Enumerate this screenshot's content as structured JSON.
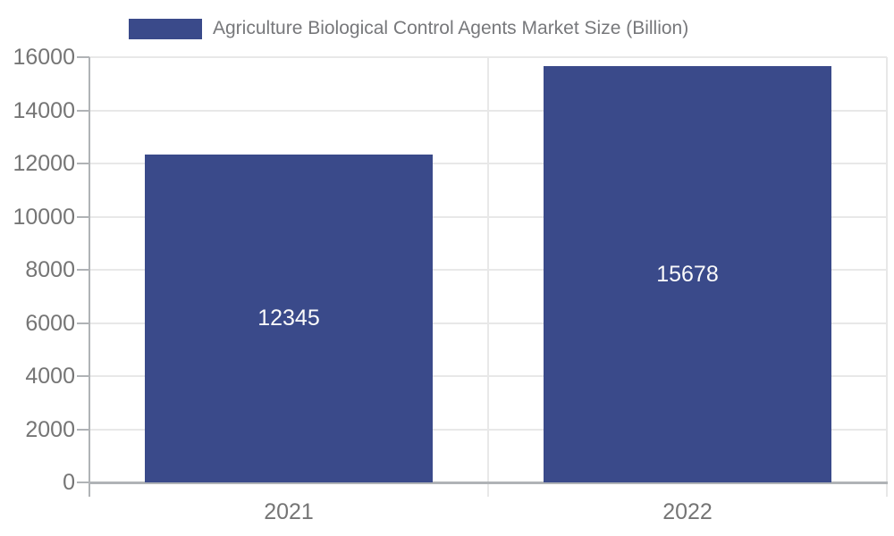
{
  "legend": {
    "label": "Agriculture Biological Control Agents Market Size (Billion)"
  },
  "chart_data": {
    "type": "bar",
    "title": "Agriculture Biological Control Agents Market Size (Billion)",
    "categories": [
      "2021",
      "2022"
    ],
    "values": [
      12345,
      15678
    ],
    "data_labels": [
      "12345",
      "15678"
    ],
    "xlabel": "",
    "ylabel": "",
    "ylim": [
      0,
      16000
    ],
    "ytick_step": 2000,
    "yticks": [
      0,
      2000,
      4000,
      6000,
      8000,
      10000,
      12000,
      14000,
      16000
    ],
    "grid": true,
    "legend_position": "top-center",
    "colors": {
      "bar": "#3a4a8a",
      "value_label": "#fafafa",
      "axis_label": "#757575",
      "title_text": "#77787b",
      "gridline": "#e8e8e8",
      "axis_line": "#b0b3b6"
    }
  }
}
